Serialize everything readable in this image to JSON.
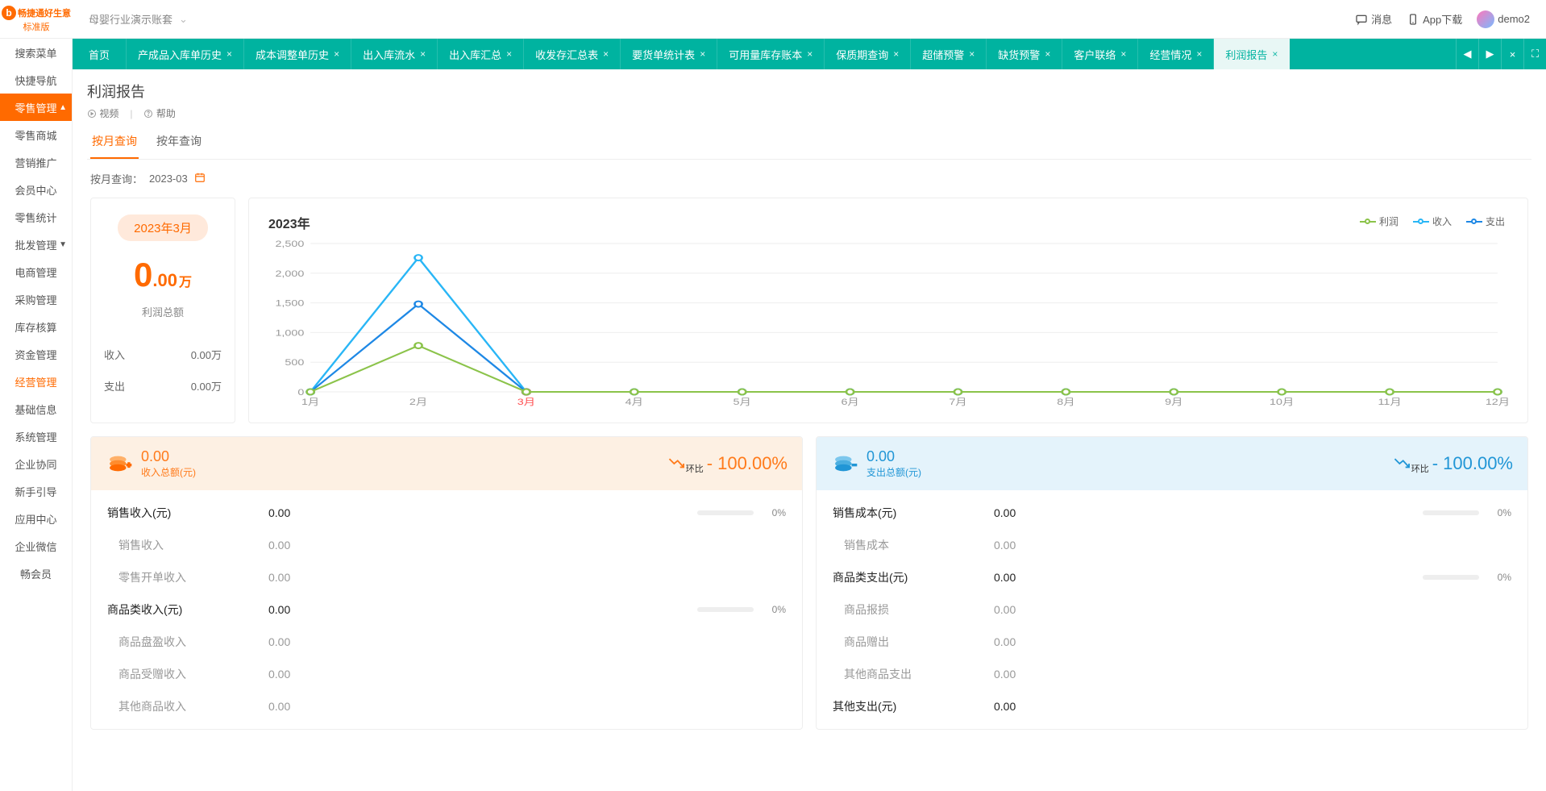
{
  "topbar": {
    "logo_text": "畅捷通好生意",
    "logo_sub": "标准版",
    "account": "母婴行业演示账套",
    "msg": "消息",
    "app": "App下载",
    "user": "demo2"
  },
  "sidebar": {
    "items": [
      {
        "label": "搜索菜单"
      },
      {
        "label": "快捷导航"
      },
      {
        "label": "零售管理",
        "active": true,
        "caret": "▲"
      },
      {
        "label": "零售商城"
      },
      {
        "label": "营销推广"
      },
      {
        "label": "会员中心"
      },
      {
        "label": "零售统计"
      },
      {
        "label": "批发管理",
        "caret": "▼"
      },
      {
        "label": "电商管理"
      },
      {
        "label": "采购管理"
      },
      {
        "label": "库存核算"
      },
      {
        "label": "资金管理"
      },
      {
        "label": "经营管理",
        "subactive": true
      },
      {
        "label": "基础信息"
      },
      {
        "label": "系统管理"
      },
      {
        "label": "企业协同"
      },
      {
        "label": "新手引导"
      },
      {
        "label": "应用中心"
      },
      {
        "label": "企业微信"
      },
      {
        "label": "畅会员"
      }
    ]
  },
  "tabs": {
    "home": "首页",
    "items": [
      "产成品入库单历史",
      "成本调整单历史",
      "出入库流水",
      "出入库汇总",
      "收发存汇总表",
      "要货单统计表",
      "可用量库存账本",
      "保质期查询",
      "超储预警",
      "缺货预警",
      "客户联络",
      "经营情况"
    ],
    "active": "利润报告"
  },
  "page": {
    "title": "利润报告",
    "video": "视频",
    "help": "帮助",
    "qtab_month": "按月查询",
    "qtab_year": "按年查询",
    "filter_label": "按月查询：",
    "filter_value": "2023-03"
  },
  "summary": {
    "badge": "2023年3月",
    "big_int": "0",
    "big_dec": ".00",
    "big_unit": "万",
    "label": "利润总额",
    "income_lbl": "收入",
    "income_val": "0.00万",
    "expense_lbl": "支出",
    "expense_val": "0.00万"
  },
  "chart": {
    "title": "2023年",
    "legend": [
      {
        "label": "利润",
        "color": "#8bc34a"
      },
      {
        "label": "收入",
        "color": "#29b6f6"
      },
      {
        "label": "支出",
        "color": "#1e88e5"
      }
    ],
    "yticks": [
      0,
      500,
      1000,
      1500,
      2000,
      2500
    ],
    "ylim": [
      0,
      2500
    ],
    "xlabels": [
      "1月",
      "2月",
      "3月",
      "4月",
      "5月",
      "6月",
      "7月",
      "8月",
      "9月",
      "10月",
      "11月",
      "12月"
    ],
    "highlight_x": 2,
    "series": {
      "profit": [
        0,
        780,
        0,
        0,
        0,
        0,
        0,
        0,
        0,
        0,
        0,
        0
      ],
      "income": [
        0,
        2260,
        0,
        0,
        0,
        0,
        0,
        0,
        0,
        0,
        0,
        0
      ],
      "expense": [
        0,
        1480,
        0,
        0,
        0,
        0,
        0,
        0,
        0,
        null,
        null,
        null
      ]
    },
    "colors": {
      "profit": "#8bc34a",
      "income": "#29b6f6",
      "expense": "#1e88e5",
      "grid": "#eeeeee",
      "axis_text": "#999999"
    }
  },
  "income_card": {
    "color": "#ff7a1a",
    "head_val": "0.00",
    "head_lbl": "收入总额(元)",
    "change_lbl": "环比",
    "change_val": "- 100.00%",
    "rows": [
      {
        "lab": "销售收入(元)",
        "val": "0.00",
        "pct": "0%",
        "bold": true
      },
      {
        "lab": "销售收入",
        "val": "0.00",
        "sub": true
      },
      {
        "lab": "零售开单收入",
        "val": "0.00",
        "sub": true
      },
      {
        "lab": "商品类收入(元)",
        "val": "0.00",
        "pct": "0%",
        "bold": true
      },
      {
        "lab": "商品盘盈收入",
        "val": "0.00",
        "sub": true
      },
      {
        "lab": "商品受赠收入",
        "val": "0.00",
        "sub": true
      },
      {
        "lab": "其他商品收入",
        "val": "0.00",
        "sub": true
      }
    ]
  },
  "expense_card": {
    "color": "#2196d6",
    "head_val": "0.00",
    "head_lbl": "支出总额(元)",
    "change_lbl": "环比",
    "change_val": "- 100.00%",
    "rows": [
      {
        "lab": "销售成本(元)",
        "val": "0.00",
        "pct": "0%",
        "bold": true
      },
      {
        "lab": "销售成本",
        "val": "0.00",
        "sub": true
      },
      {
        "lab": "商品类支出(元)",
        "val": "0.00",
        "pct": "0%",
        "bold": true
      },
      {
        "lab": "商品报损",
        "val": "0.00",
        "sub": true
      },
      {
        "lab": "商品赠出",
        "val": "0.00",
        "sub": true
      },
      {
        "lab": "其他商品支出",
        "val": "0.00",
        "sub": true
      },
      {
        "lab": "其他支出(元)",
        "val": "0.00",
        "bold": true
      }
    ]
  }
}
